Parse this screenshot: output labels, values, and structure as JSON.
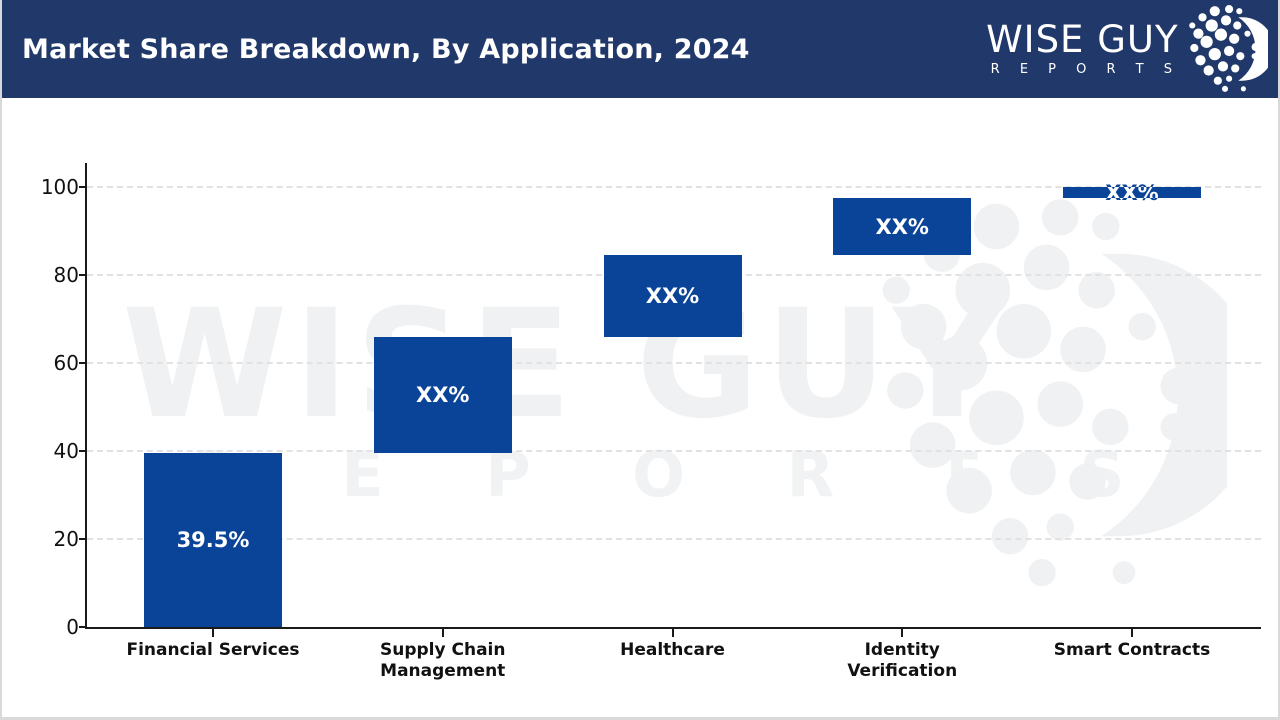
{
  "header": {
    "title": "Market Share Breakdown, By Application, 2024",
    "bg_color": "#21386a",
    "logo": {
      "line1": "WISE GUY",
      "line2": "R E P O R T S"
    }
  },
  "watermark": {
    "line1": "WISE GUY",
    "line2": "R E P O R T S"
  },
  "chart_data": {
    "type": "bar",
    "subtype": "waterfall",
    "title": "Market Share Breakdown, By Application, 2024",
    "categories": [
      "Financial Services",
      "Supply Chain Management",
      "Healthcare",
      "Identity Verification",
      "Smart Contracts"
    ],
    "segments": [
      {
        "category": "Financial Services",
        "label_lines": [
          "Financial Services"
        ],
        "start": 0,
        "end": 39.5,
        "label": "39.5%"
      },
      {
        "category": "Supply Chain Management",
        "label_lines": [
          "Supply Chain",
          "Management"
        ],
        "start": 39.5,
        "end": 66,
        "label": "XX%"
      },
      {
        "category": "Healthcare",
        "label_lines": [
          "Healthcare"
        ],
        "start": 66,
        "end": 84.5,
        "label": "XX%"
      },
      {
        "category": "Identity Verification",
        "label_lines": [
          "Identity",
          "Verification"
        ],
        "start": 84.5,
        "end": 97.5,
        "label": "XX%"
      },
      {
        "category": "Smart Contracts",
        "label_lines": [
          "Smart Contracts"
        ],
        "start": 97.5,
        "end": 100,
        "label": "XX%"
      }
    ],
    "y_ticks": [
      0,
      20,
      40,
      60,
      80,
      100
    ],
    "ylim": [
      0,
      104
    ],
    "grid": "horizontal dashed",
    "legend": "none",
    "bar_color": "#0a4499",
    "bar_label_color": "#ffffff",
    "axis_color": "#1a1a1a"
  }
}
